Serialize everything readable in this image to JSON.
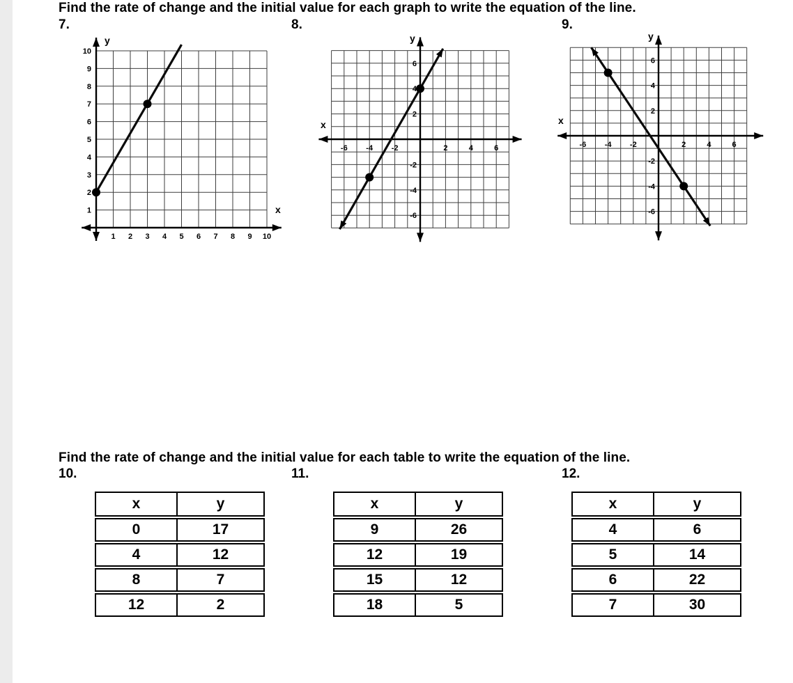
{
  "sections": {
    "graphs": {
      "heading": "Find the rate of change and the initial value for each graph to write the equation of the line.",
      "items": [
        "7.",
        "8.",
        "9."
      ]
    },
    "tables": {
      "heading": "Find the rate of change and the initial value for each table to write the equation of the line.",
      "items": [
        "10.",
        "11.",
        "12."
      ]
    }
  },
  "chart_data": [
    {
      "id": "graph7",
      "item_label": "7.",
      "type": "line",
      "title": "",
      "xlabel": "x",
      "ylabel": "y",
      "x_range": [
        0,
        10
      ],
      "y_range": [
        0,
        10
      ],
      "grid": true,
      "x_tick_labels": [
        1,
        2,
        3,
        4,
        5,
        6,
        7,
        8,
        9,
        10
      ],
      "y_tick_labels": [
        1,
        2,
        3,
        4,
        5,
        6,
        7,
        8,
        9,
        10
      ],
      "marked_points": [
        [
          0,
          2
        ],
        [
          3,
          7
        ]
      ],
      "segment": {
        "from": [
          0,
          2
        ],
        "to": [
          5.0,
          10.35
        ],
        "arrow_from": false,
        "arrow_to": false
      }
    },
    {
      "id": "graph8",
      "item_label": "8.",
      "type": "line",
      "title": "",
      "xlabel": "x",
      "ylabel": "y",
      "x_range": [
        -7,
        7
      ],
      "y_range": [
        -7,
        7
      ],
      "grid": true,
      "x_tick_labels": [
        -6,
        -4,
        -2,
        2,
        4,
        6
      ],
      "y_tick_labels": [
        6,
        4,
        2,
        -2,
        -4,
        -6
      ],
      "marked_points": [
        [
          -4,
          -3
        ],
        [
          0,
          4
        ]
      ],
      "segment": {
        "from": [
          -6.35,
          -7.1
        ],
        "to": [
          1.8,
          7.15
        ],
        "arrow_from": true,
        "arrow_to": true
      }
    },
    {
      "id": "graph9",
      "item_label": "9.",
      "type": "line",
      "title": "",
      "xlabel": "x",
      "ylabel": "y",
      "x_range": [
        -7,
        7
      ],
      "y_range": [
        -7,
        7
      ],
      "grid": true,
      "x_tick_labels": [
        -6,
        -4,
        -2,
        2,
        4,
        6
      ],
      "y_tick_labels": [
        6,
        4,
        2,
        -2,
        -4,
        -6
      ],
      "marked_points": [
        [
          -4,
          5
        ],
        [
          2,
          -4
        ]
      ],
      "segment": {
        "from": [
          -5.33,
          7.0
        ],
        "to": [
          4.1,
          -7.15
        ],
        "arrow_from": true,
        "arrow_to": true
      }
    },
    {
      "id": "table10",
      "item_label": "10.",
      "type": "table",
      "columns": [
        "x",
        "y"
      ],
      "rows": [
        [
          "0",
          "17"
        ],
        [
          "4",
          "12"
        ],
        [
          "8",
          "7"
        ],
        [
          "12",
          "2"
        ]
      ]
    },
    {
      "id": "table11",
      "item_label": "11.",
      "type": "table",
      "columns": [
        "x",
        "y"
      ],
      "rows": [
        [
          "9",
          "26"
        ],
        [
          "12",
          "19"
        ],
        [
          "15",
          "12"
        ],
        [
          "18",
          "5"
        ]
      ]
    },
    {
      "id": "table12",
      "item_label": "12.",
      "type": "table",
      "columns": [
        "x",
        "y"
      ],
      "rows": [
        [
          "4",
          "6"
        ],
        [
          "5",
          "14"
        ],
        [
          "6",
          "22"
        ],
        [
          "7",
          "30"
        ]
      ]
    }
  ]
}
